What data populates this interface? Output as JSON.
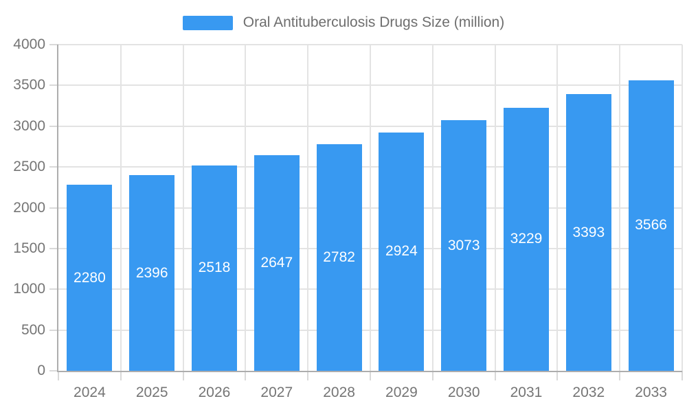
{
  "chart_data": {
    "type": "bar",
    "title": "Oral Antituberculosis Drugs Size (million)",
    "categories": [
      "2024",
      "2025",
      "2026",
      "2027",
      "2028",
      "2029",
      "2030",
      "2031",
      "2032",
      "2033"
    ],
    "values": [
      2280,
      2396,
      2518,
      2647,
      2782,
      2924,
      3073,
      3229,
      3393,
      3566
    ],
    "ylim": [
      0,
      4000
    ],
    "ytick_step": 500,
    "yticks": [
      0,
      500,
      1000,
      1500,
      2000,
      2500,
      3000,
      3500,
      4000
    ],
    "grid": true,
    "legend_position": "top-center",
    "value_label_position": "inside-center",
    "colors": {
      "bar": "#3899F1",
      "value_label": "#FFFFFF",
      "axis_text": "#757575",
      "legend_text": "#6E6E6E",
      "gridline": "#E3E3E3",
      "tick": "#D9D9D9",
      "axis_line": "#ADADAD",
      "background": "#FFFFFF"
    }
  }
}
